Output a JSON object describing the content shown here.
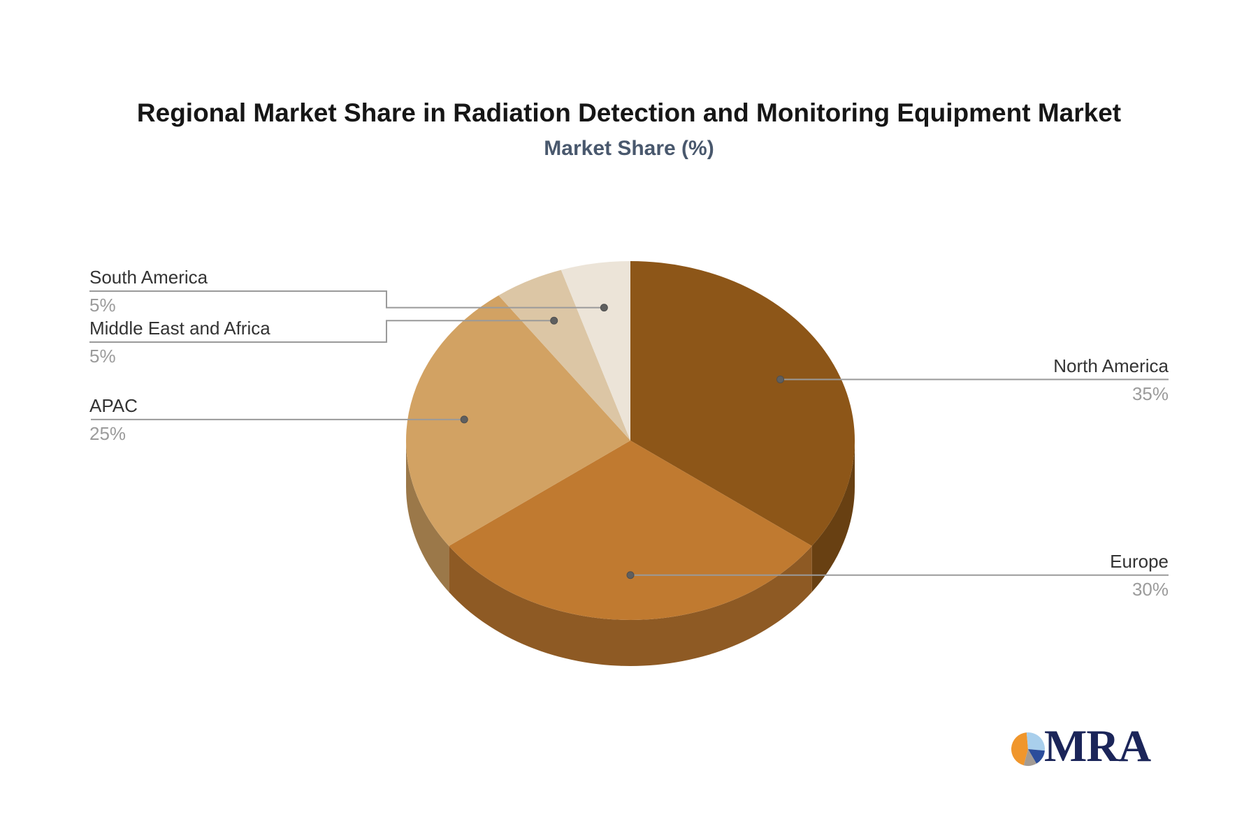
{
  "page": {
    "background": "#ffffff"
  },
  "chart_data": {
    "type": "pie",
    "effect": "3d",
    "title": "Regional Market Share in Radiation Detection and Monitoring Equipment Market",
    "subtitle": "Market Share (%)",
    "legend": "none",
    "start_angle_deg": 0,
    "direction": "clockwise",
    "label_style": "callout with leader line, category above line, percent below",
    "connector_color": "#9a9a9a",
    "label_color": "#333333",
    "pct_color": "#9b9b9b",
    "slices": [
      {
        "label": "North America",
        "value": 35,
        "pct_label": "35%",
        "color": "#8d5618"
      },
      {
        "label": "Europe",
        "value": 30,
        "pct_label": "30%",
        "color": "#c07a30"
      },
      {
        "label": "APAC",
        "value": 25,
        "pct_label": "25%",
        "color": "#d2a263"
      },
      {
        "label": "Middle East and Africa",
        "value": 5,
        "pct_label": "5%",
        "color": "#dcc6a5"
      },
      {
        "label": "South America",
        "value": 5,
        "pct_label": "5%",
        "color": "#ece4d8"
      }
    ]
  },
  "logo": {
    "text": "MRA",
    "text_color": "#1b2559",
    "pie_colors": [
      "#f0962c",
      "#a9cfec",
      "#2b4d9b",
      "#a39b94"
    ]
  }
}
